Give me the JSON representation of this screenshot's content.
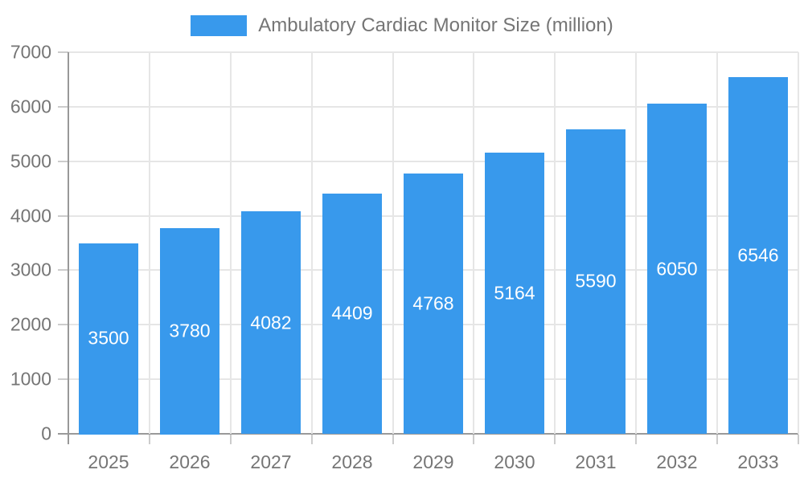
{
  "legend": {
    "label": "Ambulatory Cardiac Monitor Size (million)"
  },
  "chart_data": {
    "type": "bar",
    "title": "Ambulatory Cardiac Monitor Size (million)",
    "categories": [
      "2025",
      "2026",
      "2027",
      "2028",
      "2029",
      "2030",
      "2031",
      "2032",
      "2033"
    ],
    "series": [
      {
        "name": "Ambulatory Cardiac Monitor Size (million)",
        "values": [
          3500,
          3780,
          4082,
          4409,
          4768,
          5164,
          5590,
          6050,
          6546
        ]
      }
    ],
    "value_labels": [
      "3500",
      "3780",
      "4082",
      "4409",
      "4768",
      "5164",
      "5590",
      "6050",
      "6546"
    ],
    "xlabel": "",
    "ylabel": "",
    "ylim": [
      0,
      7000
    ],
    "yticks": [
      0,
      1000,
      2000,
      3000,
      4000,
      5000,
      6000,
      7000
    ],
    "grid": true,
    "legend_position": "top"
  },
  "colors": {
    "bar": "#3899EC",
    "grid": "#E6E6E6",
    "axis": "#999999",
    "tick": "#CCCCCC",
    "text": "#757575",
    "value_label": "#FFFFFF",
    "background": "#FFFFFF"
  }
}
